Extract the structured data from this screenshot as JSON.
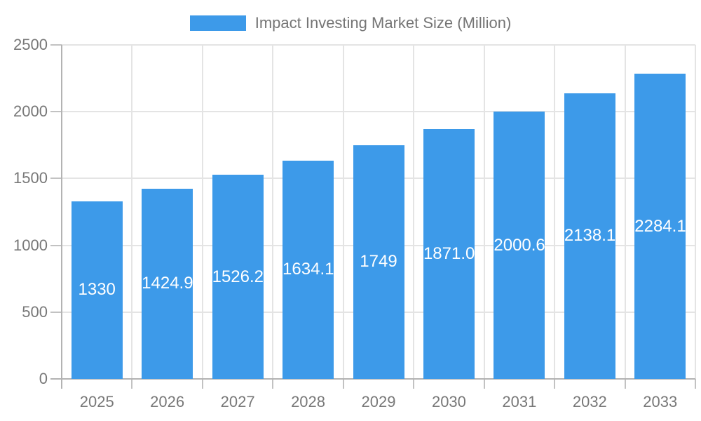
{
  "colors": {
    "bar": "#3D9AE9",
    "grid_line": "#e4e4e4",
    "axis_line": "#b3b3b3",
    "tick_mark": "#c2c2c2",
    "axis_text": "#787878",
    "legend_text": "#757575",
    "value_text": "#ffffff",
    "background": "#ffffff"
  },
  "legend": {
    "label": "Impact Investing Market Size (Million)"
  },
  "chart_data": {
    "type": "bar",
    "title": "Impact Investing Market Size (Million)",
    "series_name": "Impact Investing Market Size (Million)",
    "categories": [
      "2025",
      "2026",
      "2027",
      "2028",
      "2029",
      "2030",
      "2031",
      "2032",
      "2033"
    ],
    "values": [
      1330,
      1424.95,
      1526.25,
      1634.17,
      1749,
      1871.03,
      2000.62,
      2138.18,
      2284.1
    ],
    "value_labels": [
      "1330",
      "1424.95",
      "1526.25",
      "1634.17",
      "1749",
      "1871.03",
      "2000.62",
      "2138.18",
      "2284.1"
    ],
    "xlabel": "",
    "ylabel": "",
    "ylim": [
      0,
      2500
    ],
    "yticks": [
      0,
      500,
      1000,
      1500,
      2000,
      2500
    ],
    "grid": true,
    "legend_position": "top"
  }
}
